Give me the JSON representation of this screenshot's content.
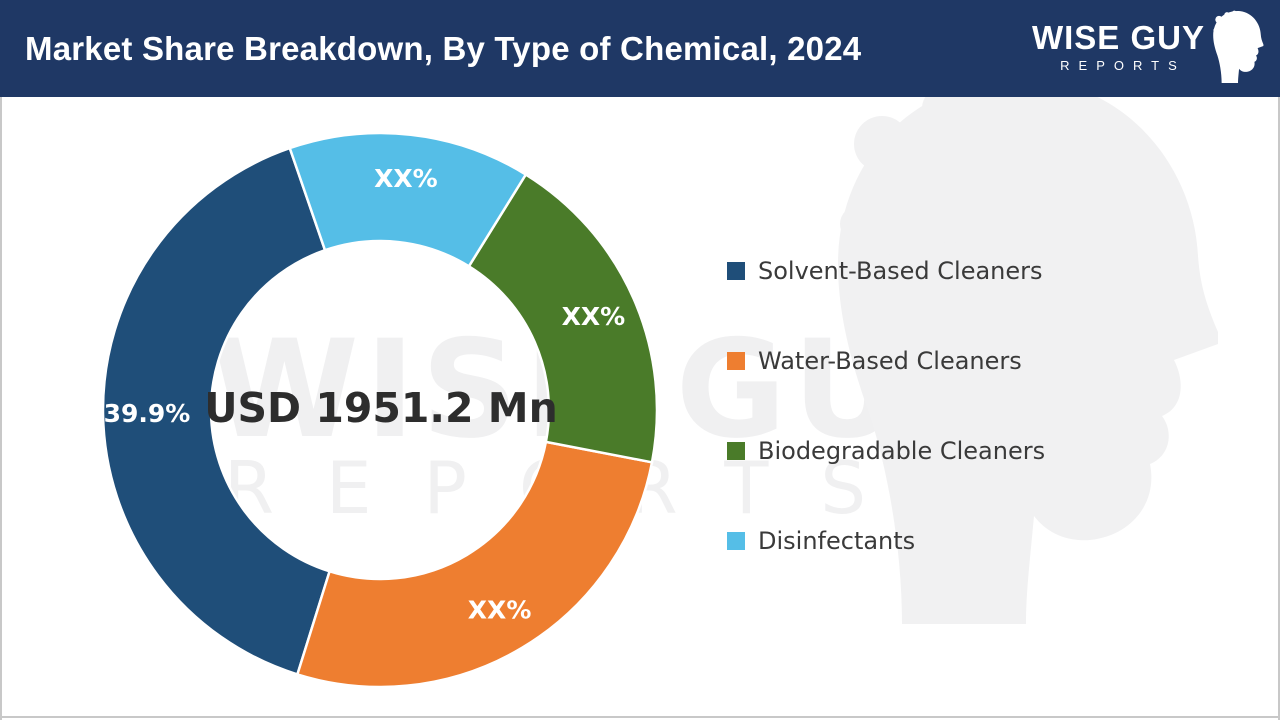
{
  "header": {
    "title": "Market Share Breakdown, By Type of Chemical, 2024",
    "bg_color": "#1F3865",
    "logo": {
      "line1": "WISE GUY",
      "line2": "REPORTS"
    }
  },
  "watermark": {
    "line1": "WISE GUY",
    "line2": "REPORTS"
  },
  "chart_data": {
    "type": "pie",
    "subtype": "donut",
    "title": "Market Share Breakdown, By Type of Chemical, 2024",
    "center_label": "USD 1951.2 Mn",
    "start_angle_deg": 109,
    "direction": "counterclockwise",
    "donut_hole_ratio": 0.61,
    "legend_position": "right",
    "segments": [
      {
        "label": "Solvent-Based Cleaners",
        "value_pct": 39.9,
        "display_label": "39.9%",
        "color": "#1F4E79"
      },
      {
        "label": "Water-Based Cleaners",
        "value_pct": 26.8,
        "display_label": "XX%",
        "color": "#EE7E30"
      },
      {
        "label": "Biodegradable Cleaners",
        "value_pct": 19.2,
        "display_label": "XX%",
        "color": "#4A7B29"
      },
      {
        "label": "Disinfectants",
        "value_pct": 14.1,
        "display_label": "XX%",
        "color": "#55BEE7"
      }
    ]
  }
}
